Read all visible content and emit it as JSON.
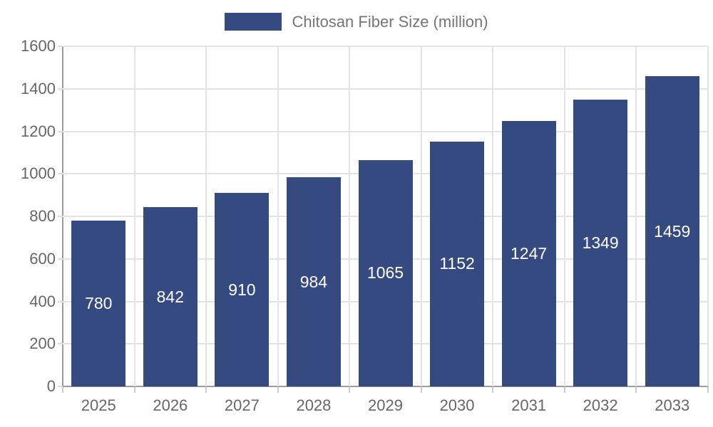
{
  "legend": {
    "label": "Chitosan Fiber Size (million)"
  },
  "chart_data": {
    "type": "bar",
    "title": "",
    "xlabel": "",
    "ylabel": "",
    "categories": [
      "2025",
      "2026",
      "2027",
      "2028",
      "2029",
      "2030",
      "2031",
      "2032",
      "2033"
    ],
    "series": [
      {
        "name": "Chitosan Fiber Size (million)",
        "values": [
          780,
          842,
          910,
          984,
          1065,
          1152,
          1247,
          1349,
          1459
        ]
      }
    ],
    "value_labels": [
      "780",
      "842",
      "910",
      "984",
      "1065",
      "1152",
      "1247",
      "1349",
      "1459"
    ],
    "ylim": [
      0,
      1600
    ],
    "yticks": [
      0,
      200,
      400,
      600,
      800,
      1000,
      1200,
      1400,
      1600
    ],
    "grid": true,
    "legend_position": "top",
    "colors": {
      "bar": "#364A82",
      "grid": "#e3e3e3",
      "axis": "#9b9b9b",
      "tick": "#cccccc",
      "tick_label": "#666666",
      "legend_text": "#757575",
      "value_label": "#ffffff",
      "background": "#ffffff"
    }
  }
}
